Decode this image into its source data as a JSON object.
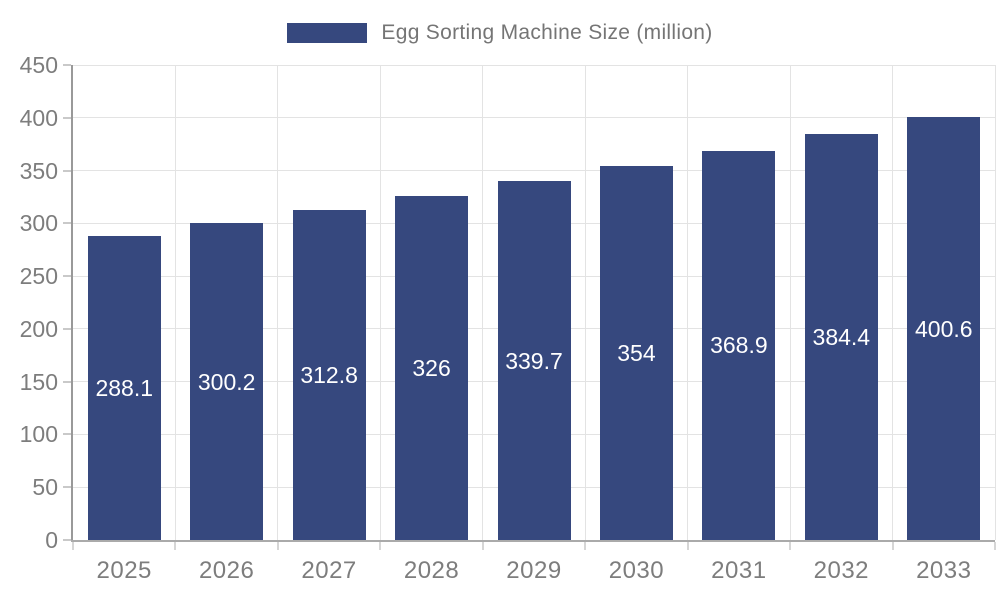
{
  "legend": {
    "label": "Egg Sorting Machine Size (million)"
  },
  "chart_data": {
    "type": "bar",
    "title": "",
    "categories": [
      "2025",
      "2026",
      "2027",
      "2028",
      "2029",
      "2030",
      "2031",
      "2032",
      "2033"
    ],
    "values": [
      288.1,
      300.2,
      312.8,
      326,
      339.7,
      354,
      368.9,
      384.4,
      400.6
    ],
    "value_labels": [
      "288.1",
      "300.2",
      "312.8",
      "326",
      "339.7",
      "354",
      "368.9",
      "384.4",
      "400.6"
    ],
    "series_name": "Egg Sorting Machine Size (million)",
    "xlabel": "",
    "ylabel": "",
    "ylim": [
      0,
      450
    ],
    "ytick_step": 50,
    "ytick_labels": [
      "0",
      "50",
      "100",
      "150",
      "200",
      "250",
      "300",
      "350",
      "400",
      "450"
    ],
    "grid": true,
    "legend_position": "top",
    "bar_color": "#36487E",
    "value_label_color": "#ffffff",
    "axis_color": "#999999",
    "grid_color": "#e3e3e3",
    "tick_label_color": "#7d7d7d",
    "legend_text_color": "#757575",
    "background_color": "#ffffff"
  }
}
